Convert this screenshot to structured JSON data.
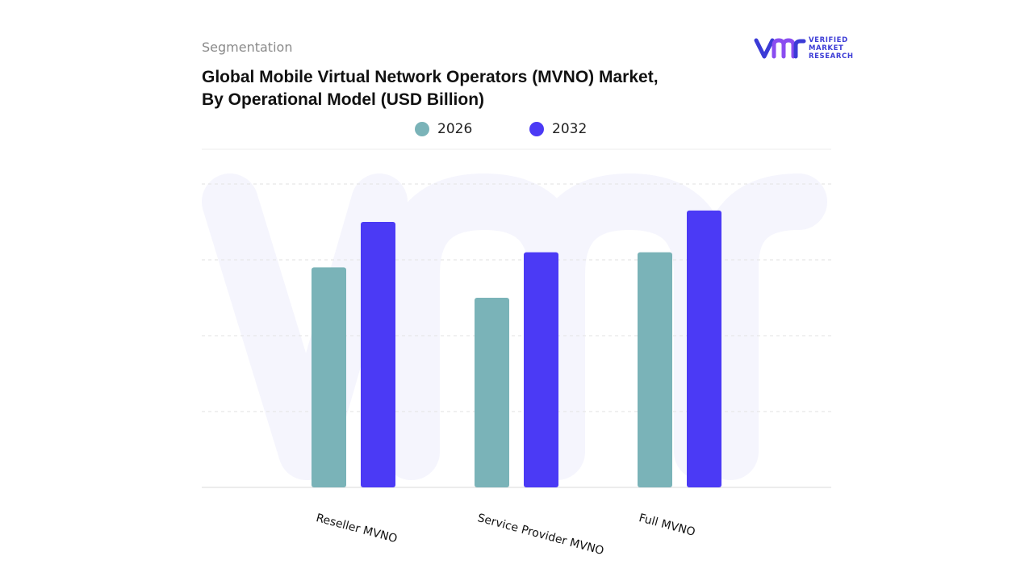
{
  "header": {
    "section_label": "Segmentation",
    "title_line1": "Global Mobile Virtual Network Operators (MVNO) Market,",
    "title_line2": "By Operational Model (USD Billion)"
  },
  "logo": {
    "name": "vmr-logo",
    "text_line1": "VERIFIED",
    "text_line2": "MARKET",
    "text_line3": "RESEARCH",
    "color": "#3b3bd6"
  },
  "chart_data": {
    "type": "bar",
    "title": "Global Mobile Virtual Network Operators (MVNO) Market, By Operational Model (USD Billion)",
    "categories": [
      "Reseller MVNO",
      "Service Provider MVNO",
      "Full MVNO"
    ],
    "series": [
      {
        "name": "2026",
        "color": "#7ab3b8",
        "values": [
          2.9,
          2.5,
          3.1
        ]
      },
      {
        "name": "2032",
        "color": "#4b3af5",
        "values": [
          3.5,
          3.1,
          3.65
        ]
      }
    ],
    "ylim": [
      0,
      4
    ],
    "grid": true,
    "legend_position": "top-center",
    "xlabel": "",
    "ylabel": ""
  }
}
